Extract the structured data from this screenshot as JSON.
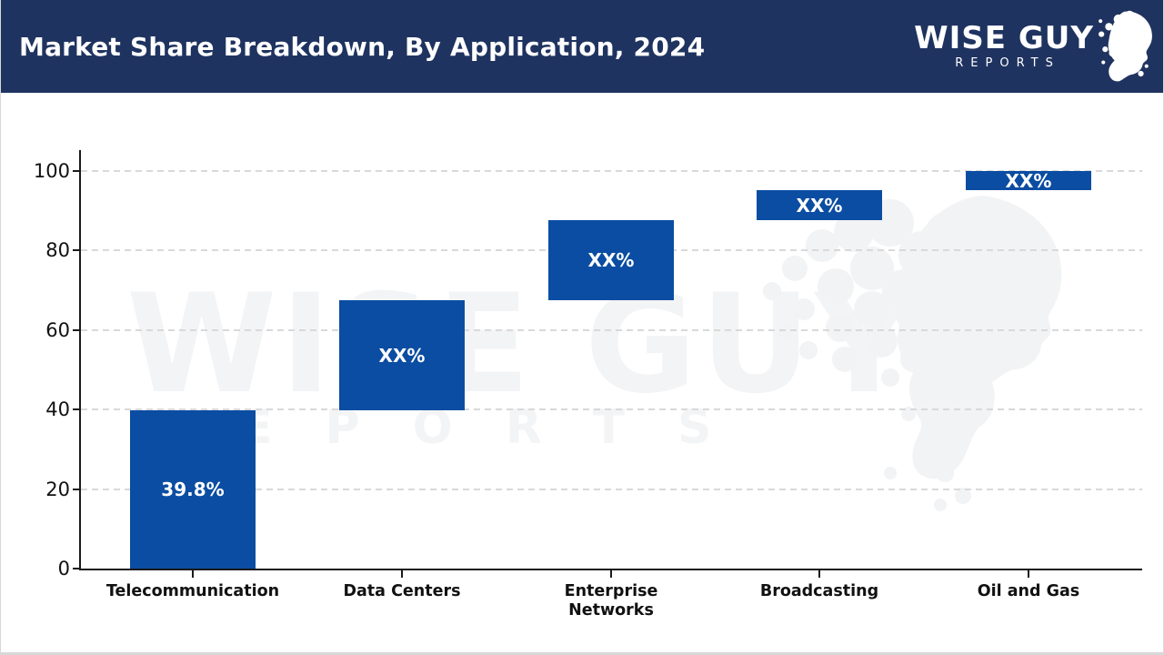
{
  "header": {
    "title": "Market Share Breakdown, By Application, 2024",
    "logo": {
      "line1": "WISE GUY",
      "line2": "REPORTS"
    }
  },
  "watermark": {
    "line1": "WISE GUY",
    "line2": "REPORTS"
  },
  "colors": {
    "header_bg": "#1f3360",
    "bar": "#0b4da2",
    "axis": "#1a1a1a",
    "grid": "#d9d9d9",
    "watermark": "#f3f4f6",
    "bar_label": "#ffffff",
    "text": "#111111"
  },
  "chart_data": {
    "type": "bar",
    "subtype": "waterfall",
    "title": "Market Share Breakdown, By Application, 2024",
    "xlabel": "",
    "ylabel": "",
    "categories": [
      "Telecommunication",
      "Data Centers",
      "Enterprise\nNetworks",
      "Broadcasting",
      "Oil and Gas"
    ],
    "segments": [
      {
        "category": "Telecommunication",
        "start": 0,
        "end": 39.8,
        "label": "39.8%"
      },
      {
        "category": "Data Centers",
        "start": 39.8,
        "end": 67.5,
        "label": "XX%"
      },
      {
        "category": "Enterprise Networks",
        "start": 67.5,
        "end": 87.6,
        "label": "XX%"
      },
      {
        "category": "Broadcasting",
        "start": 87.6,
        "end": 95.2,
        "label": "XX%"
      },
      {
        "category": "Oil and Gas",
        "start": 95.2,
        "end": 100,
        "label": "XX%"
      }
    ],
    "yticks": [
      0,
      20,
      40,
      60,
      80,
      100
    ],
    "ylim": [
      0,
      105
    ],
    "grid": "horizontal-dashed",
    "legend": "none",
    "bar_color": "#0b4da2"
  }
}
